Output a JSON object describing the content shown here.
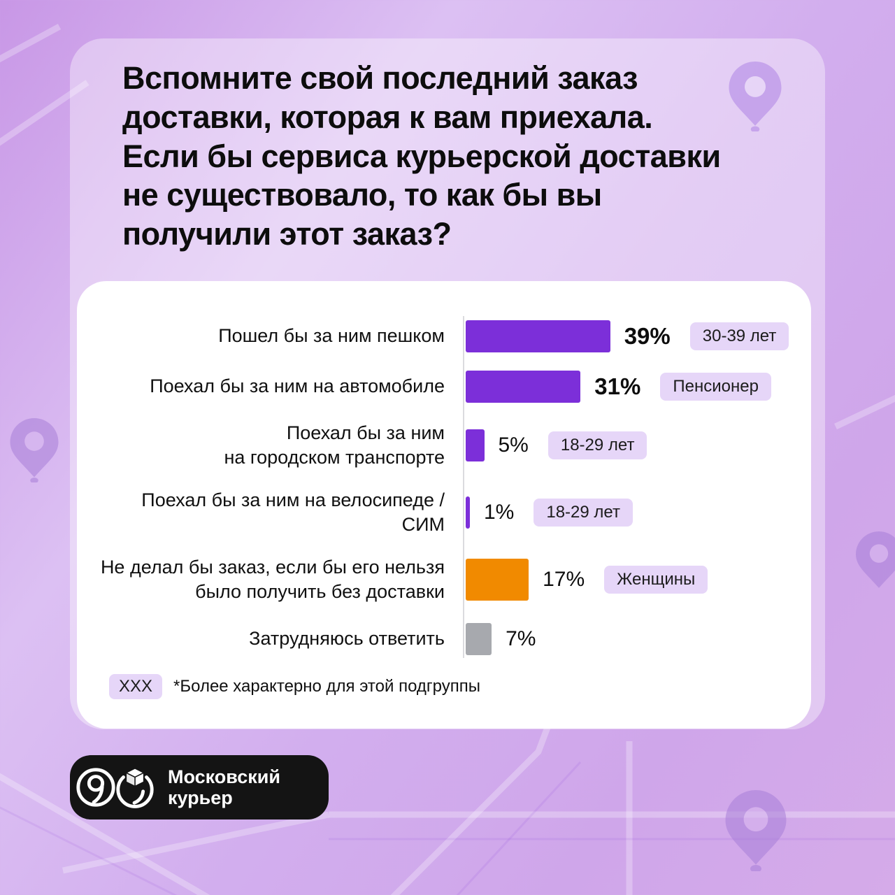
{
  "header": {
    "title": "Вспомните свой последний заказ\nдоставки, которая к вам приехала.\nЕсли бы сервиса курьерской доставки\nне существовало, то как бы вы\nполучили этот заказ?"
  },
  "chart_data": {
    "type": "bar",
    "orientation": "horizontal",
    "categories": [
      "Пошел бы за ним пешком",
      "Поехал бы за ним на автомобиле",
      "Поехал бы за ним\nна городском транспорте",
      "Поехал бы за ним на велосипеде /\nСИМ",
      "Не делал бы заказ, если бы его нельзя\nбыло получить без доставки",
      "Затрудняюсь ответить"
    ],
    "values": [
      39,
      31,
      5,
      1,
      17,
      7
    ],
    "unit": "%",
    "value_labels": [
      "39%",
      "31%",
      "5%",
      "1%",
      "17%",
      "7%"
    ],
    "value_bold": [
      true,
      true,
      false,
      false,
      false,
      false
    ],
    "colors": [
      "#7c2fd9",
      "#7c2fd9",
      "#7c2fd9",
      "#7c2fd9",
      "#f18a00",
      "#a7a9ae"
    ],
    "tags": [
      "30-39 лет",
      "Пенсионер",
      "18-29 лет",
      "18-29 лет",
      "Женщины",
      null
    ],
    "xlim": [
      0,
      40
    ],
    "grid": false,
    "legend": false,
    "footnote_tag": "XXX",
    "footnote_text": "*Более характерно для этой подгруппы"
  },
  "logo": {
    "text": "Московский курьер",
    "icons": [
      "moscow-transport-logo",
      "courier-box-icon"
    ]
  },
  "theme": {
    "bar_purple": "#7c2fd9",
    "bar_orange": "#f18a00",
    "bar_gray": "#a7a9ae",
    "tag_bg": "#e6d6f8",
    "card_bg": "#ffffff",
    "background_accent": "#d2aeee"
  }
}
